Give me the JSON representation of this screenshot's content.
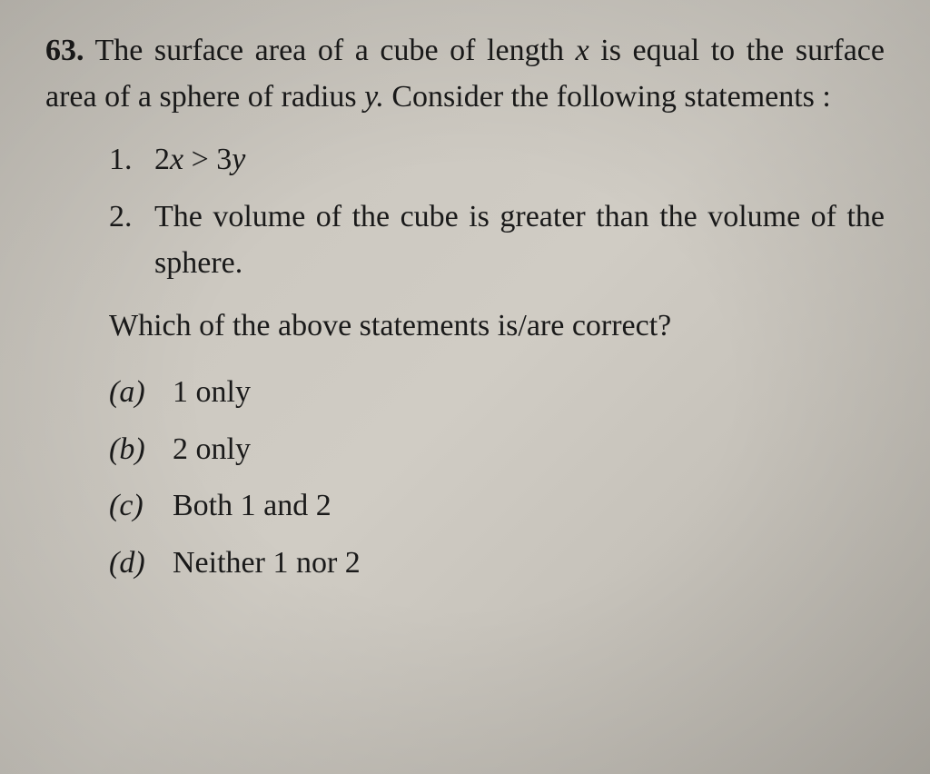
{
  "question": {
    "number": "63.",
    "text_parts": {
      "line1_prefix": "The surface area of a cube of length ",
      "var_x": "x",
      "line2": " is equal to the surface area of a sphere of radius ",
      "var_y": "y.",
      "line3": " Consider the following statements :"
    }
  },
  "statements": [
    {
      "num": "1.",
      "prefix": "2",
      "var1": "x",
      "mid": " > 3",
      "var2": "y"
    },
    {
      "num": "2.",
      "text": "The volume of the cube is greater than the volume of the sphere."
    }
  ],
  "which_text": "Which of the above statements is/are correct?",
  "options": [
    {
      "letter": "(a)",
      "text": "1 only"
    },
    {
      "letter": "(b)",
      "text": "2 only"
    },
    {
      "letter": "(c)",
      "text": "Both 1 and 2"
    },
    {
      "letter": "(d)",
      "text": "Neither 1 nor 2"
    }
  ],
  "style": {
    "background_color": "#c8c4bc",
    "text_color": "#1a1a1a",
    "font_family": "Georgia, Times New Roman, serif",
    "question_fontsize": 34,
    "line_height": 1.5
  }
}
